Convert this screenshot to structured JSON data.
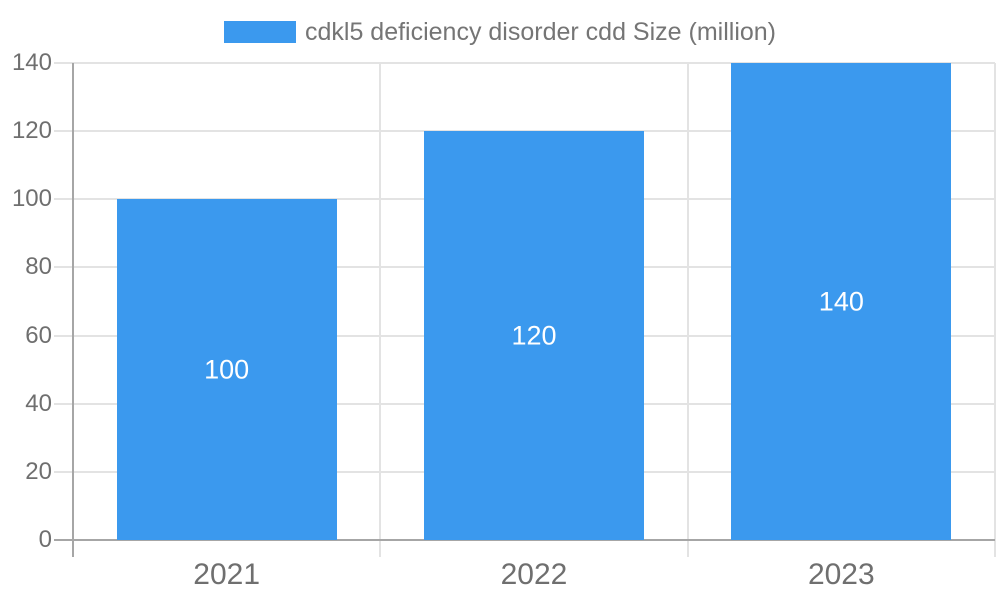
{
  "chart_data": {
    "type": "bar",
    "title": "cdkl5 deficiency disorder cdd Size (million)",
    "categories": [
      "2021",
      "2022",
      "2023"
    ],
    "values": [
      100,
      120,
      140
    ],
    "bar_value_labels": [
      "100",
      "120",
      "140"
    ],
    "xlabel": "",
    "ylabel": "",
    "ylim": [
      0,
      140
    ],
    "ytick_step": 20,
    "yticks": [
      0,
      20,
      40,
      60,
      80,
      100,
      120,
      140
    ],
    "grid": true,
    "legend_position": "top",
    "colors": {
      "bar": "#3B99EE",
      "bar_label": "#FFFFFF",
      "axis_text": "#6F6F6F",
      "title_text": "#757575",
      "grid_line": "#E3E3E3",
      "axis_line": "#A6A6A6"
    }
  }
}
